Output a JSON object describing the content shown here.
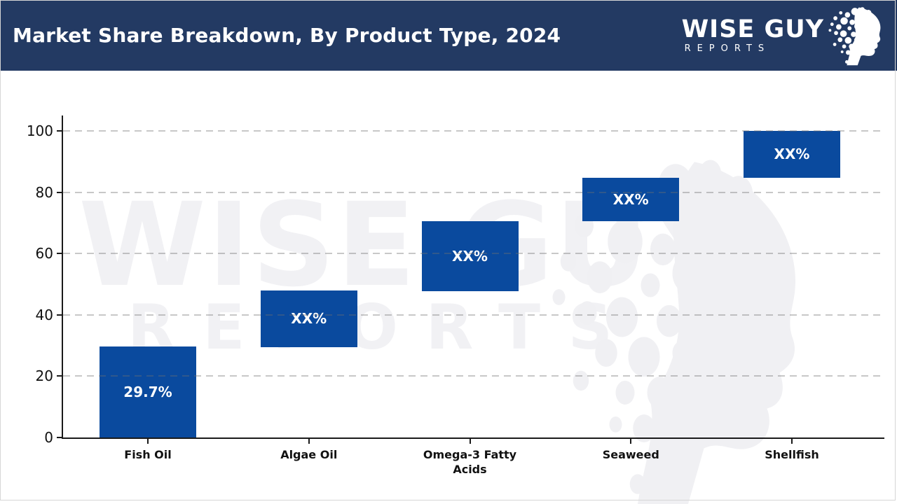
{
  "header": {
    "title": "Market Share Breakdown, By Product Type, 2024",
    "brand": {
      "name": "WISE GUY",
      "subtitle": "REPORTS"
    },
    "bg_color": "#233A63"
  },
  "watermark": {
    "line1": "WISE GUY",
    "line2": "REPORTS"
  },
  "chart_data": {
    "type": "bar",
    "subtype": "floating-waterfall",
    "title": "Market Share Breakdown, By Product Type, 2024",
    "categories": [
      "Fish Oil",
      "Algae Oil",
      "Omega-3 Fatty Acids",
      "Seaweed",
      "Shellfish"
    ],
    "series": [
      {
        "name": "Market Share (%)",
        "segments": [
          {
            "category": "Fish Oil",
            "start": 0,
            "end": 29.7,
            "label": "29.7%"
          },
          {
            "category": "Algae Oil",
            "start": 29.5,
            "end": 48.0,
            "label": "XX%"
          },
          {
            "category": "Omega-3 Fatty Acids",
            "start": 47.7,
            "end": 70.5,
            "label": "XX%"
          },
          {
            "category": "Seaweed",
            "start": 70.5,
            "end": 84.8,
            "label": "XX%"
          },
          {
            "category": "Shellfish",
            "start": 84.8,
            "end": 100.0,
            "label": "XX%"
          }
        ]
      }
    ],
    "xlabel": "",
    "ylabel": "",
    "y_ticks": [
      0,
      20,
      40,
      60,
      80,
      100
    ],
    "ylim": [
      0,
      105
    ],
    "grid": "horizontal-dashed",
    "legend": "none",
    "bar_color": "#0A4A9E",
    "bar_label_color": "#FFFFFF",
    "axis_color": "#1a1a1a"
  }
}
